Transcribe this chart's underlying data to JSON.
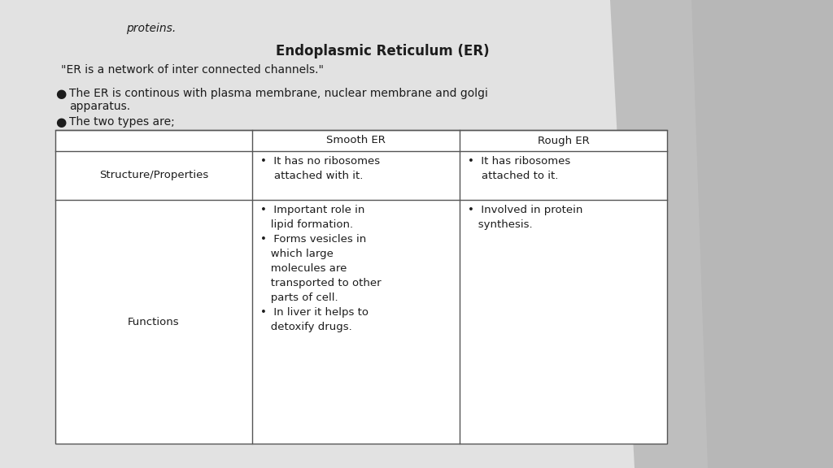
{
  "bg_color": "#c8c8c8",
  "page_color": "#e8e8e8",
  "shadow_color": "#aaaaaa",
  "title": "Endoplasmic Reticulum (ER)",
  "subtitle": "\"ER is a network of inter connected channels.\"",
  "top_text": "proteins.",
  "bullet1_line1": "The ER is continous with plasma membrane, nuclear membrane and golgi",
  "bullet1_line2": "apparatus.",
  "bullet2": "The two types are;",
  "col_header1": "Smooth ER",
  "col_header2": "Rough ER",
  "row1_label": "Structure/Properties",
  "row1_smooth": "•  It has no ribosomes\n    attached with it.",
  "row1_rough": "•  It has ribosomes\n    attached to it.",
  "row2_label": "Functions",
  "row2_smooth": "•  Important role in\n   lipid formation.\n•  Forms vesicles in\n   which large\n   molecules are\n   transported to other\n   parts of cell.\n•  In liver it helps to\n   detoxify drugs.",
  "row2_rough": "•  Involved in protein\n   synthesis.",
  "text_color": "#1c1c1c",
  "font_size_title": 12,
  "font_size_body": 10,
  "font_size_table": 9.5
}
